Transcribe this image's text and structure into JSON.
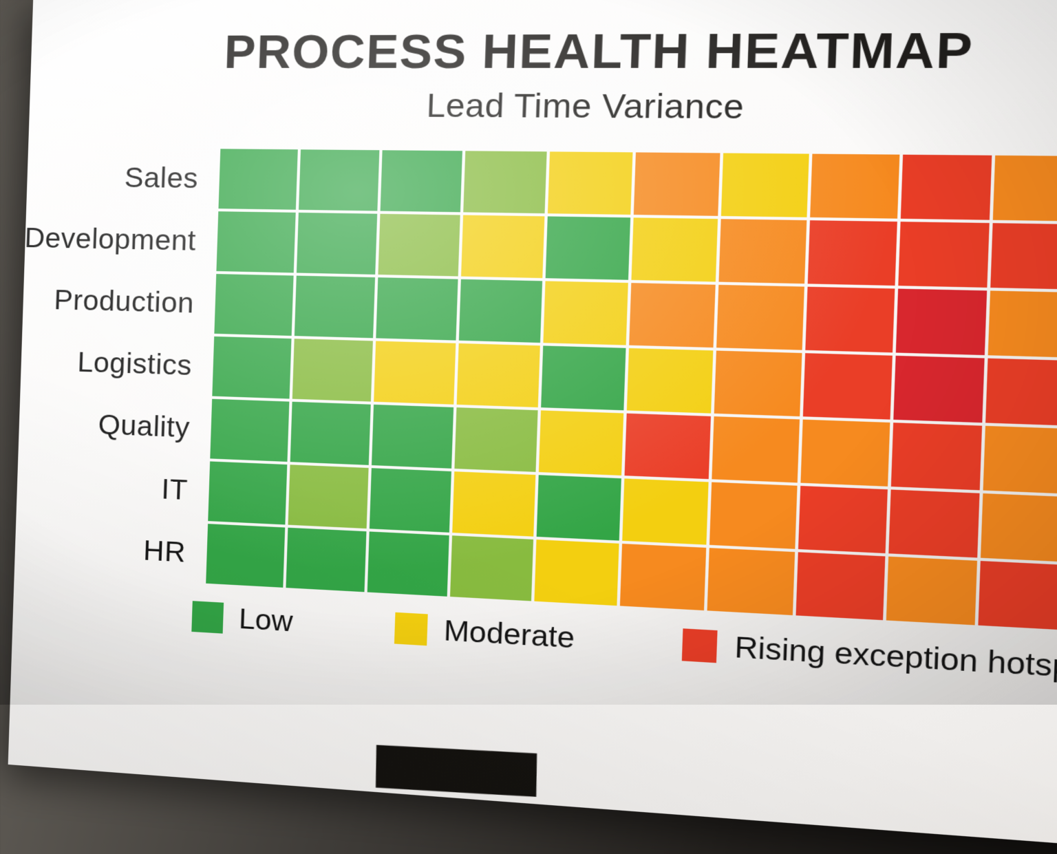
{
  "poster": {
    "title": "PROCESS HEALTH HEATMAP",
    "subtitle": "Lead Time Variance"
  },
  "chart_data": {
    "type": "heatmap",
    "title": "PROCESS HEALTH HEATMAP",
    "subtitle": "Lead Time Variance",
    "rows": [
      "Sales",
      "Development",
      "Production",
      "Logistics",
      "Quality",
      "IT",
      "HR"
    ],
    "columns": 10,
    "column_labels": [],
    "palette": {
      "G": "#33a546",
      "g": "#88bb3f",
      "Y": "#f3cf10",
      "O": "#f68a1f",
      "R": "#ea3e27",
      "D": "#d8272e"
    },
    "grid": [
      [
        "G",
        "G",
        "G",
        "g",
        "Y",
        "O",
        "Y",
        "O",
        "R",
        "O"
      ],
      [
        "G",
        "G",
        "g",
        "Y",
        "G",
        "Y",
        "O",
        "R",
        "R",
        "R"
      ],
      [
        "G",
        "G",
        "G",
        "G",
        "Y",
        "O",
        "O",
        "R",
        "D",
        "O"
      ],
      [
        "G",
        "g",
        "Y",
        "Y",
        "G",
        "Y",
        "O",
        "R",
        "D",
        "R"
      ],
      [
        "G",
        "G",
        "G",
        "g",
        "Y",
        "R",
        "O",
        "O",
        "R",
        "O"
      ],
      [
        "G",
        "g",
        "G",
        "Y",
        "G",
        "Y",
        "O",
        "R",
        "R",
        "O"
      ],
      [
        "G",
        "G",
        "G",
        "g",
        "Y",
        "O",
        "O",
        "R",
        "O",
        "R"
      ]
    ],
    "legend": [
      {
        "label": "Low",
        "color": "#33a546"
      },
      {
        "label": "Moderate",
        "color": "#f3cf10"
      },
      {
        "label": "Rising exception hotspots",
        "color": "#ea3e27"
      }
    ],
    "legend_position": "bottom",
    "grid_lines": "white-gaps"
  }
}
